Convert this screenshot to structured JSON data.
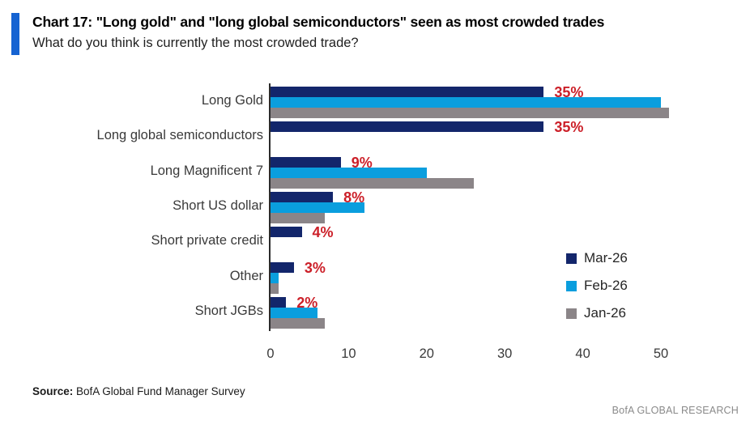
{
  "header": {
    "title": "Chart 17: \"Long gold\" and \"long global semiconductors\" seen as most crowded trades",
    "subtitle": "What do you think is currently the most crowded trade?",
    "accent_color": "#1563d2"
  },
  "chart_data": {
    "type": "bar",
    "orientation": "horizontal",
    "title": "Chart 17: \"Long gold\" and \"long global semiconductors\" seen as most crowded trades",
    "subtitle": "What do you think is currently the most crowded trade?",
    "categories": [
      "Long Gold",
      "Long global semiconductors",
      "Long Magnificent 7",
      "Short US dollar",
      "Short private credit",
      "Other",
      "Short JGBs"
    ],
    "series": [
      {
        "name": "Mar-26",
        "color": "#13266b",
        "values": [
          35,
          35,
          9,
          8,
          4,
          3,
          2
        ]
      },
      {
        "name": "Feb-26",
        "color": "#0a9ede",
        "values": [
          50,
          0,
          20,
          12,
          0,
          1,
          6
        ]
      },
      {
        "name": "Jan-26",
        "color": "#8b8588",
        "values": [
          51,
          0,
          26,
          7,
          0,
          1,
          7
        ]
      }
    ],
    "bar_labels": [
      "35%",
      "35%",
      "9%",
      "8%",
      "4%",
      "3%",
      "2%"
    ],
    "bar_label_color": "#cc2029",
    "xlim": [
      0,
      50
    ],
    "x_ticks": [
      0,
      10,
      20,
      30,
      40,
      50
    ],
    "grid": false,
    "legend_position": "middle-right"
  },
  "footer": {
    "source_label": "Source:",
    "source_text": " BofA Global Fund Manager Survey",
    "brand": "BofA GLOBAL RESEARCH"
  }
}
